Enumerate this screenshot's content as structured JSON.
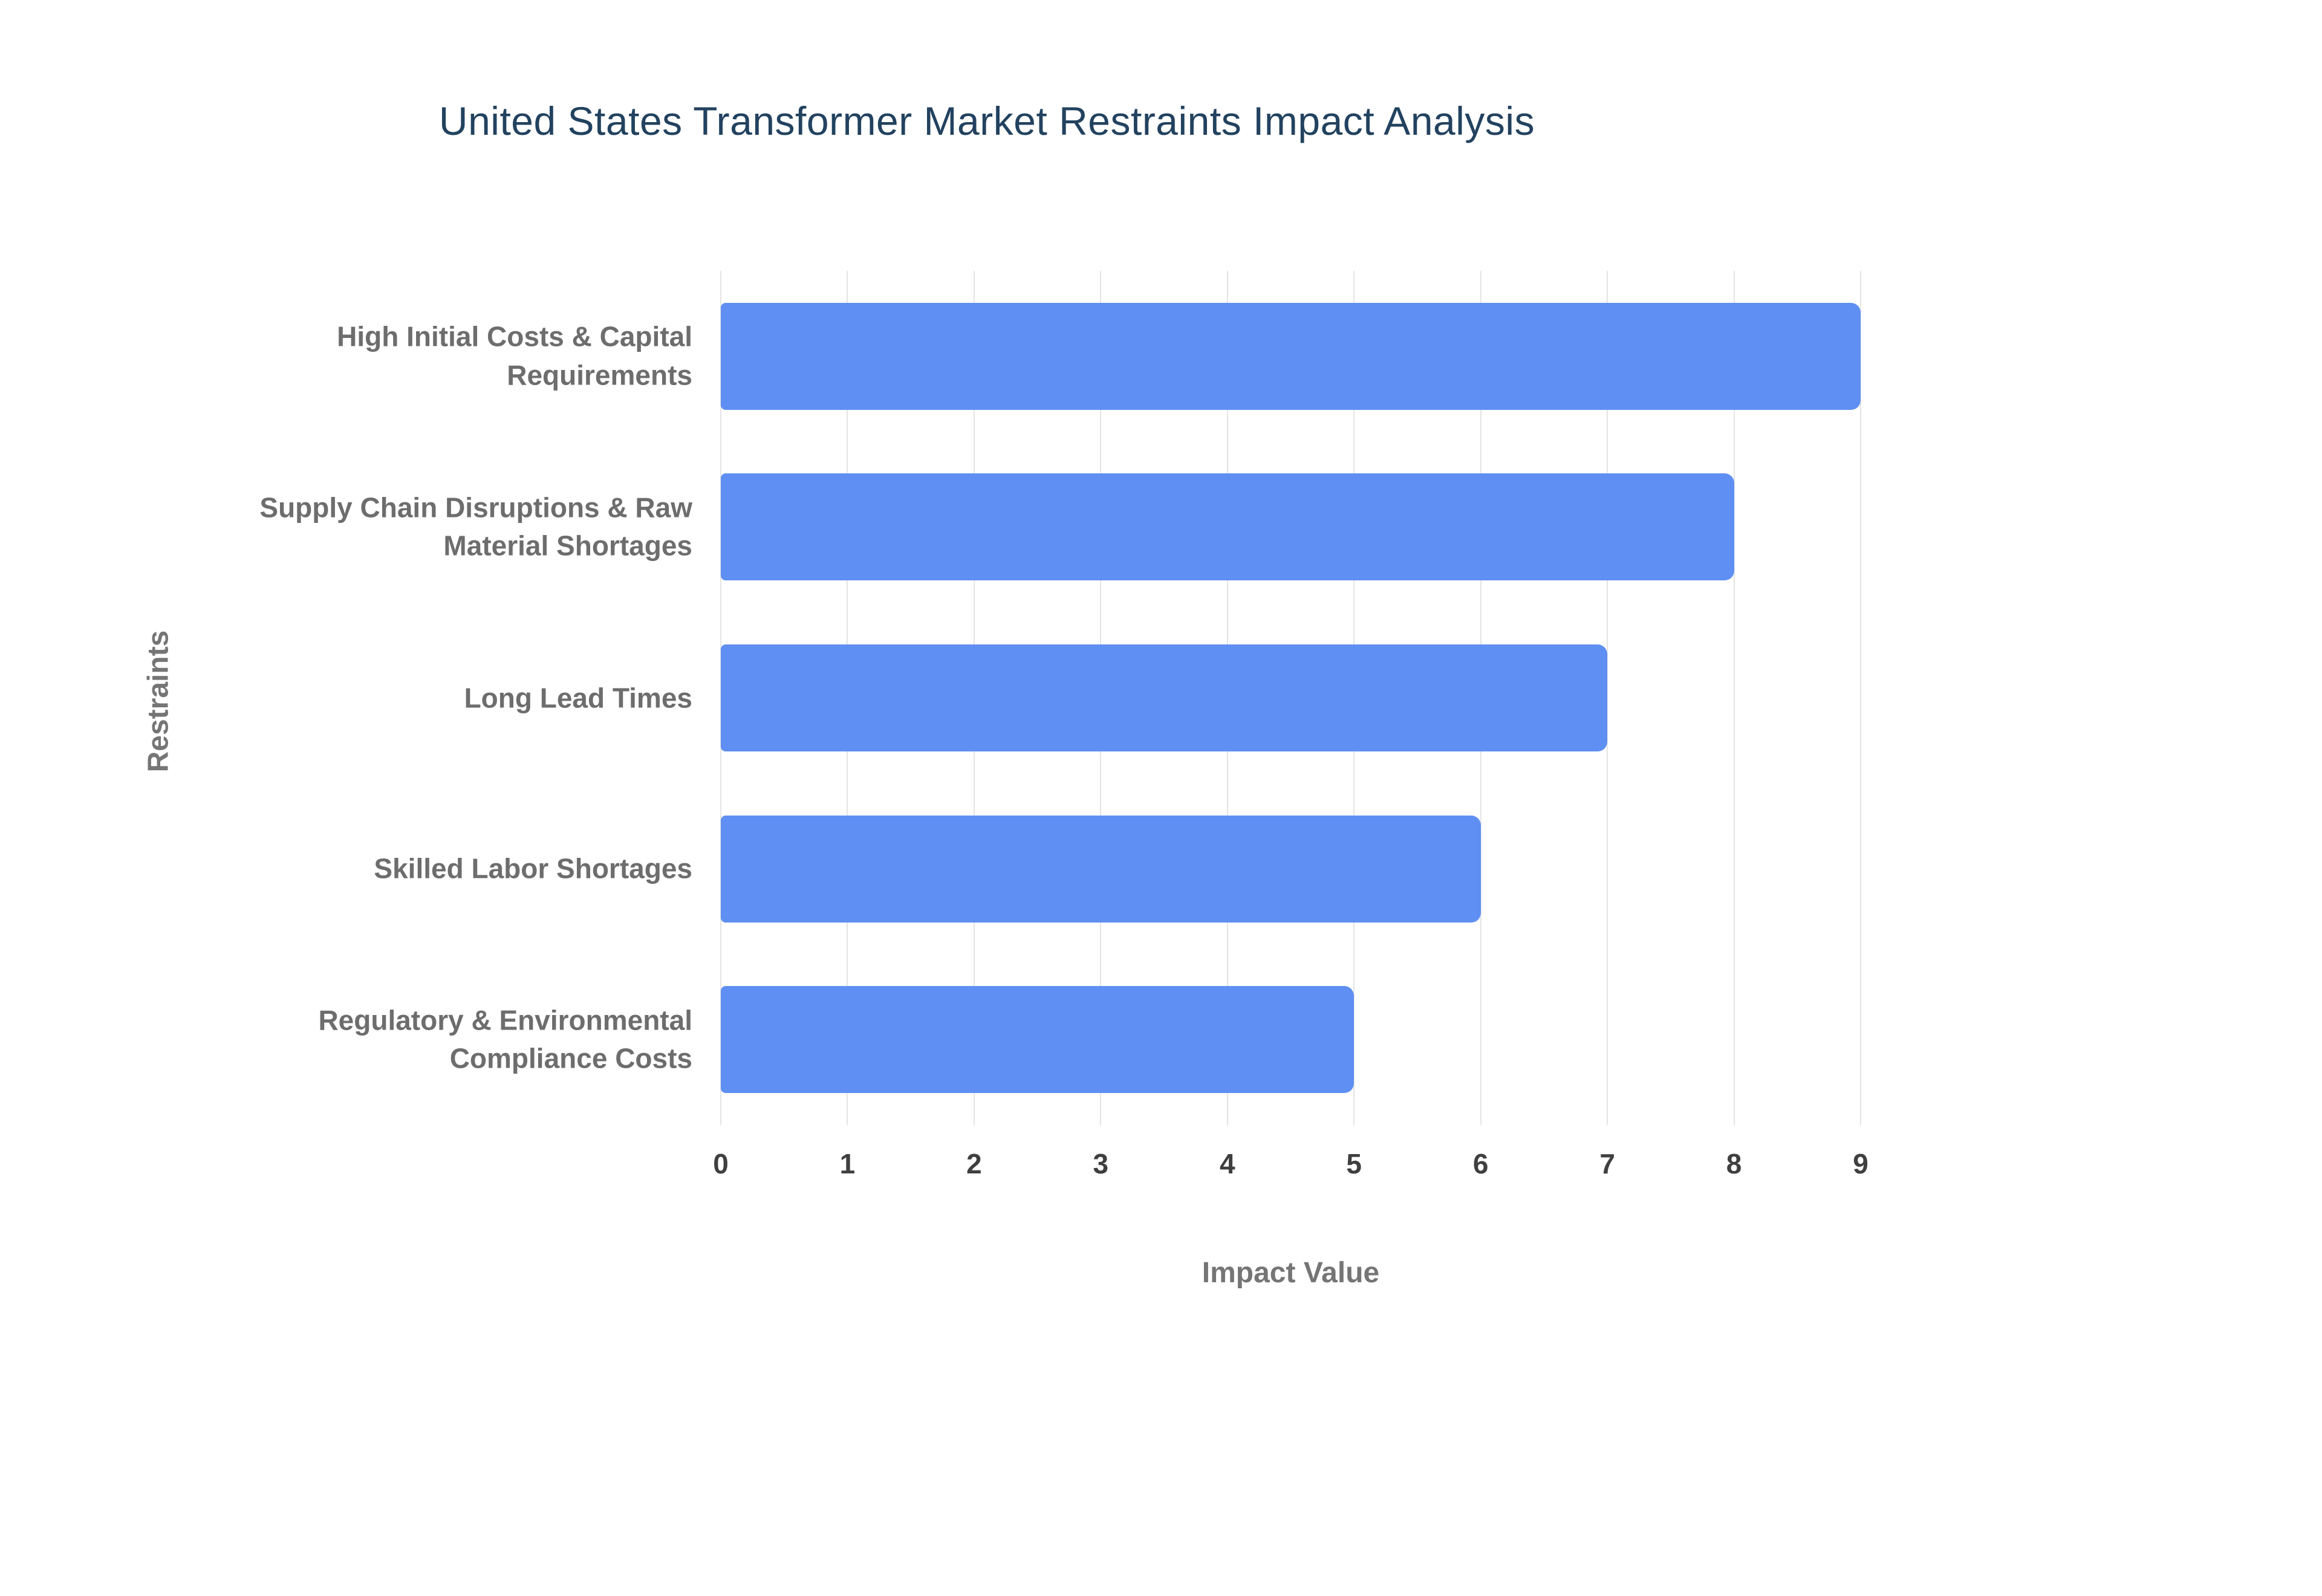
{
  "page": {
    "background": "#ffffff"
  },
  "chart_data": {
    "type": "bar",
    "orientation": "horizontal",
    "title": "United States Transformer Market Restraints Impact Analysis",
    "categories": [
      "High Initial Costs & Capital Requirements",
      "Supply Chain Disruptions & Raw Material Shortages",
      "Long Lead Times",
      "Skilled Labor Shortages",
      "Regulatory & Environmental Compliance Costs"
    ],
    "values": [
      9,
      8,
      7,
      6,
      5
    ],
    "xlabel": "Impact Value",
    "ylabel": "Restraints",
    "xlim": [
      0,
      9
    ],
    "xticks": [
      0,
      1,
      2,
      3,
      4,
      5,
      6,
      7,
      8,
      9
    ],
    "grid": true,
    "legend": "none",
    "colors": {
      "bar": "#5f8ff2",
      "title": "#22425f",
      "category_label": "#6d6d6d",
      "tick_label": "#3f3f3f",
      "axis_title": "#757575",
      "gridline": "#e4e4e4",
      "background": "#ffffff"
    }
  }
}
